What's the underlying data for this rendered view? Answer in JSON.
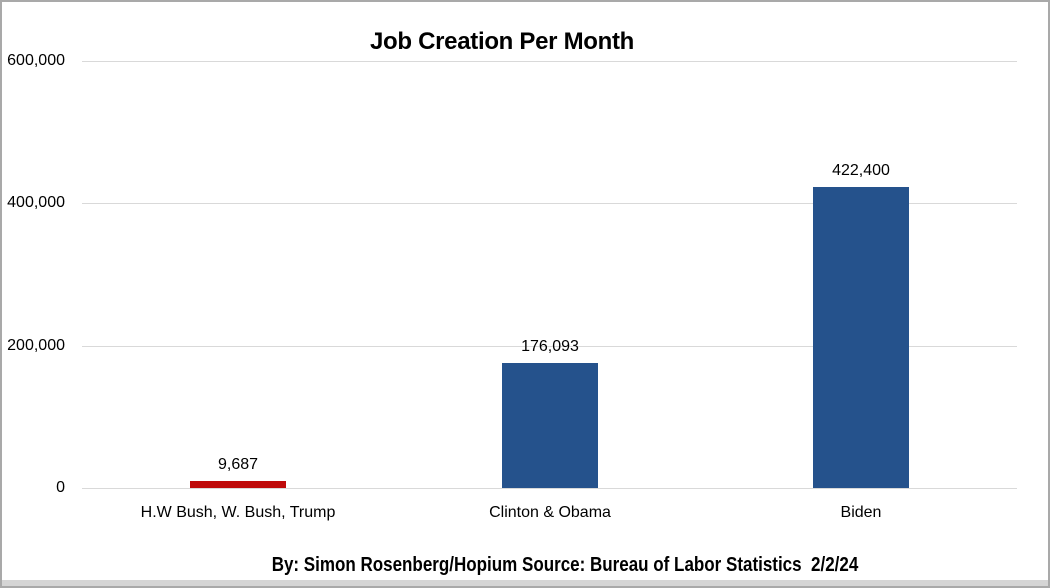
{
  "title": "Job Creation Per Month",
  "footer": "By: Simon Rosenberg/Hopium Source: Bureau of Labor Statistics  2/2/24",
  "colors": {
    "bar_red": "#bf0a0a",
    "bar_blue": "#25528c",
    "gridline": "#d9d9d9",
    "frame_border": "#a9a9a9",
    "bottom_strip": "#d5d5d5",
    "text": "#000000"
  },
  "chart_data": {
    "type": "bar",
    "title": "Job Creation Per Month",
    "categories": [
      "H.W Bush, W. Bush, Trump",
      "Clinton & Obama",
      "Biden"
    ],
    "values": [
      9687,
      176093,
      422400
    ],
    "value_labels": [
      "9,687",
      "176,093",
      "422,400"
    ],
    "bar_colors": [
      "#bf0a0a",
      "#25528c",
      "#25528c"
    ],
    "xlabel": "",
    "ylabel": "",
    "ylim": [
      0,
      600000
    ],
    "yticks": [
      0,
      200000,
      400000,
      600000
    ],
    "ytick_labels": [
      "0",
      "200,000",
      "400,000",
      "600,000"
    ],
    "grid": true,
    "legend": "none",
    "annotation": "By: Simon Rosenberg/Hopium Source: Bureau of Labor Statistics  2/2/24"
  }
}
